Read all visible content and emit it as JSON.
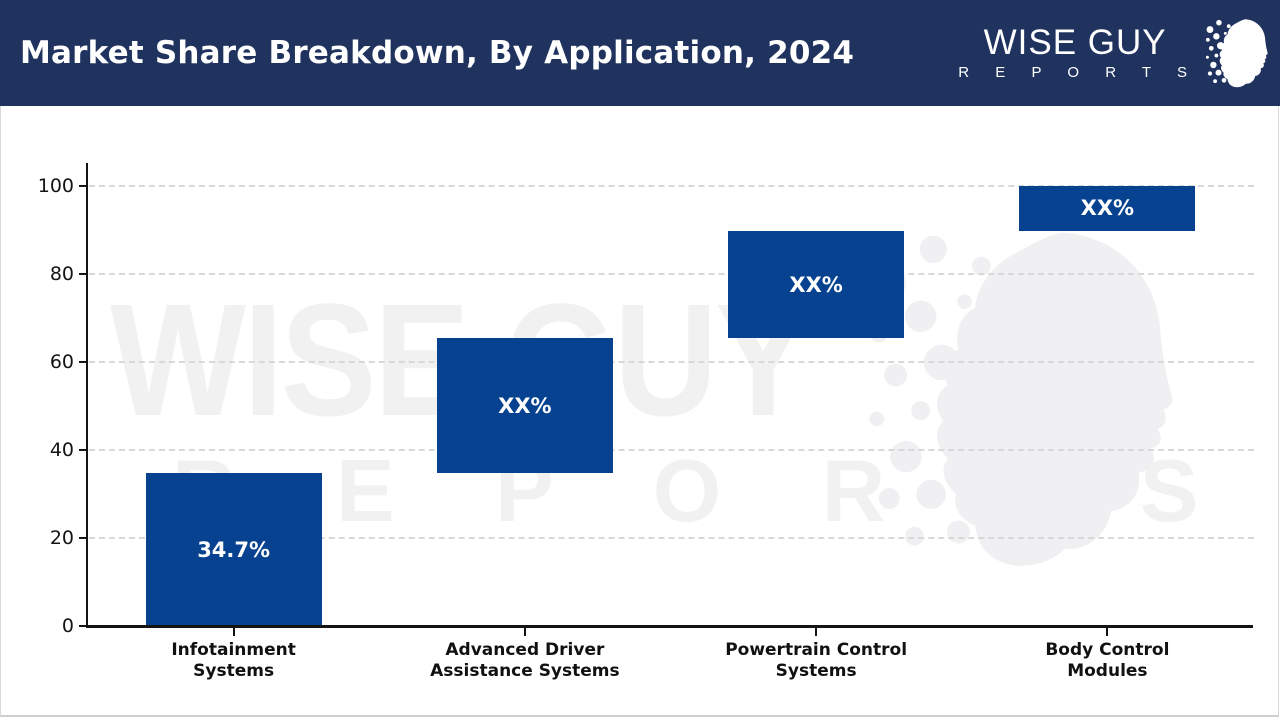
{
  "header": {
    "title": "Market Share Breakdown, By Application, 2024",
    "brand": {
      "line1": "WISE GUY",
      "line2": "R E P O R T S"
    }
  },
  "watermark": {
    "line1": "WISE GUY",
    "line2": "R E P O R T S"
  },
  "chart_data": {
    "type": "bar",
    "subtype": "floating-segment-waterfall",
    "title": "Market Share Breakdown, By Application, 2024",
    "categories": [
      "Infotainment Systems",
      "Advanced Driver Assistance Systems",
      "Powertrain Control Systems",
      "Body Control Modules"
    ],
    "category_lines": [
      [
        "Infotainment",
        "Systems"
      ],
      [
        "Advanced Driver",
        "Assistance Systems"
      ],
      [
        "Powertrain Control",
        "Systems"
      ],
      [
        "Body Control",
        "Modules"
      ]
    ],
    "segments": [
      {
        "category": "Infotainment Systems",
        "start": 0,
        "end": 34.7,
        "label": "34.7%"
      },
      {
        "category": "Advanced Driver Assistance Systems",
        "start": 34.7,
        "end": 65.4,
        "label": "XX%"
      },
      {
        "category": "Powertrain Control Systems",
        "start": 65.4,
        "end": 89.8,
        "label": "XX%"
      },
      {
        "category": "Body Control Modules",
        "start": 89.8,
        "end": 100,
        "label": "XX%"
      }
    ],
    "xlabel": "",
    "ylabel": "",
    "yticks": [
      0,
      20,
      40,
      60,
      80,
      100
    ],
    "ylim": [
      0,
      105
    ],
    "grid": "horizontal-dashed",
    "legend": "none"
  },
  "colors": {
    "header_bg": "#20335f",
    "header_text": "#ffffff",
    "bar": "#06428f",
    "bar_label": "#ffffff",
    "axis": "#141414",
    "gridline": "#d8d8d8",
    "watermark": "#f1f1f2",
    "page_border": "#d8d8d8"
  }
}
